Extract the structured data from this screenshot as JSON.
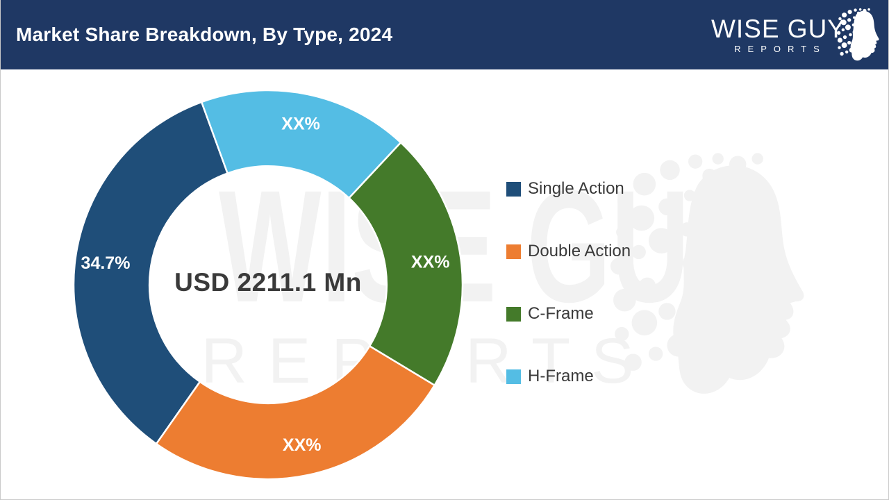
{
  "header": {
    "title": "Market Share Breakdown, By Type, 2024",
    "background_color": "#1f3864",
    "logo": {
      "line1": "WISE GUY",
      "line2": "REPORTS"
    }
  },
  "chart_data": {
    "type": "pie",
    "subtype": "donut",
    "title": "Market Share Breakdown, By Type, 2024",
    "center_label": "USD 2211.1 Mn",
    "start_angle_deg": 110,
    "direction": "counterclockwise",
    "inner_radius_ratio": 0.61,
    "legend_position": "right",
    "slices": [
      {
        "name": "Single Action",
        "display_label": "34.7%",
        "value_pct": 34.7,
        "color": "#1f4e79"
      },
      {
        "name": "Double Action",
        "display_label": "XX%",
        "value_pct": 26.1,
        "color": "#ed7d31"
      },
      {
        "name": "C-Frame",
        "display_label": "XX%",
        "value_pct": 21.7,
        "color": "#447a2a"
      },
      {
        "name": "H-Frame",
        "display_label": "XX%",
        "value_pct": 17.5,
        "color": "#54bde4"
      }
    ]
  },
  "watermark": {
    "line1": "WISE GUY",
    "line2": "REPORTS"
  },
  "colors": {
    "accent_navy": "#1f3864",
    "text_dark": "#3a3a3a",
    "watermark_gray": "#f2f2f2",
    "slice_border": "#ffffff"
  }
}
